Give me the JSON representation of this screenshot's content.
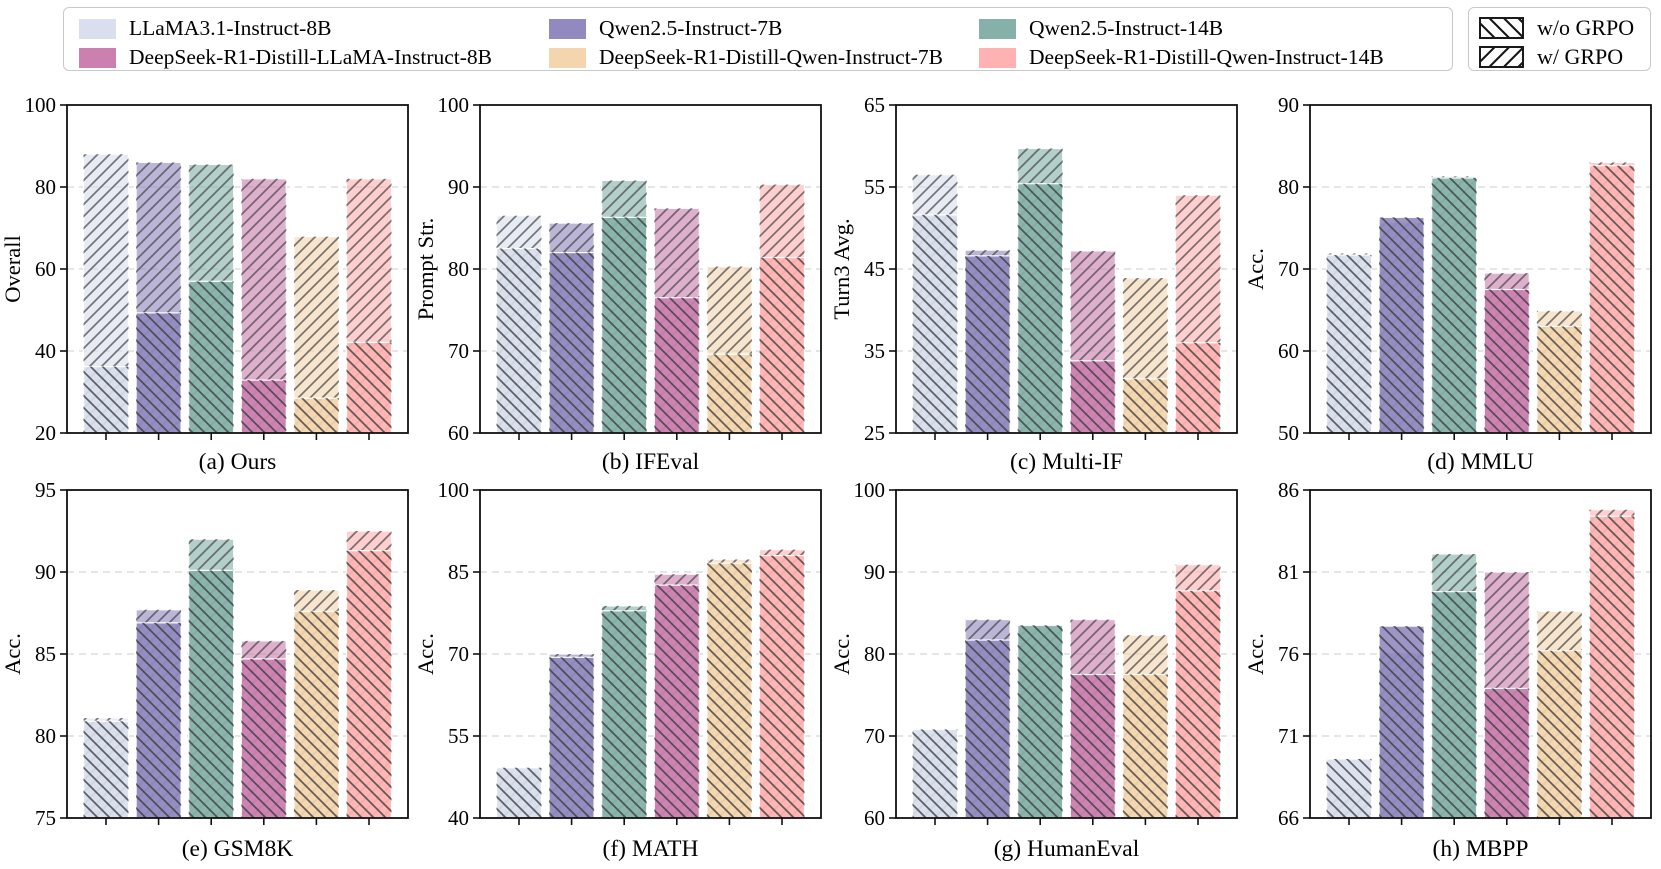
{
  "figure": {
    "legend": {
      "models": [
        {
          "label": "LLaMA3.1-Instruct-8B",
          "color": "#d9dfee"
        },
        {
          "label": "Qwen2.5-Instruct-7B",
          "color": "#9189c0"
        },
        {
          "label": "Qwen2.5-Instruct-14B",
          "color": "#85b1aa"
        },
        {
          "label": "DeepSeek-R1-Distill-LLaMA-Instruct-8B",
          "color": "#cb80b0"
        },
        {
          "label": "DeepSeek-R1-Distill-Qwen-Instruct-7B",
          "color": "#f4d5ae"
        },
        {
          "label": "DeepSeek-R1-Distill-Qwen-Instruct-14B",
          "color": "#ffb2b1"
        }
      ],
      "hatches": [
        {
          "label": "w/o GRPO",
          "pattern": "backslash"
        },
        {
          "label": "w/ GRPO",
          "pattern": "slash"
        }
      ],
      "position": "top"
    }
  },
  "chart_data": [
    {
      "type": "bar",
      "caption": "(a) Ours",
      "ylabel": "Overall",
      "ylim": [
        20,
        100
      ],
      "yticks": [
        20,
        40,
        60,
        80,
        100
      ],
      "grid": "horizontal-dashed",
      "categories": [
        "LLaMA3.1-Instruct-8B",
        "Qwen2.5-Instruct-7B",
        "Qwen2.5-Instruct-14B",
        "DeepSeek-R1-Distill-LLaMA-Instruct-8B",
        "DeepSeek-R1-Distill-Qwen-Instruct-7B",
        "DeepSeek-R1-Distill-Qwen-Instruct-14B"
      ],
      "series": [
        {
          "name": "w/o GRPO",
          "values": [
            36.2,
            49.3,
            57.0,
            32.9,
            28.5,
            42.1
          ]
        },
        {
          "name": "w/ GRPO",
          "values": [
            88.0,
            86.0,
            85.5,
            82.0,
            67.9,
            82.0
          ]
        }
      ]
    },
    {
      "type": "bar",
      "caption": "(b) IFEval",
      "ylabel": "Prompt Str.",
      "ylim": [
        60,
        100
      ],
      "yticks": [
        60,
        70,
        80,
        90,
        100
      ],
      "grid": "horizontal-dashed",
      "categories": [
        "LLaMA3.1-Instruct-8B",
        "Qwen2.5-Instruct-7B",
        "Qwen2.5-Instruct-14B",
        "DeepSeek-R1-Distill-LLaMA-Instruct-8B",
        "DeepSeek-R1-Distill-Qwen-Instruct-7B",
        "DeepSeek-R1-Distill-Qwen-Instruct-14B"
      ],
      "series": [
        {
          "name": "w/o GRPO",
          "values": [
            82.5,
            82.0,
            86.3,
            76.5,
            69.6,
            81.4
          ]
        },
        {
          "name": "w/ GRPO",
          "values": [
            86.5,
            85.6,
            90.8,
            87.4,
            80.3,
            90.3
          ]
        }
      ]
    },
    {
      "type": "bar",
      "caption": "(c) Multi-IF",
      "ylabel": "Turn3 Avg.",
      "ylim": [
        25,
        65
      ],
      "yticks": [
        25,
        35,
        45,
        55,
        65
      ],
      "grid": "horizontal-dashed",
      "categories": [
        "LLaMA3.1-Instruct-8B",
        "Qwen2.5-Instruct-7B",
        "Qwen2.5-Instruct-14B",
        "DeepSeek-R1-Distill-LLaMA-Instruct-8B",
        "DeepSeek-R1-Distill-Qwen-Instruct-7B",
        "DeepSeek-R1-Distill-Qwen-Instruct-14B"
      ],
      "series": [
        {
          "name": "w/o GRPO",
          "values": [
            51.6,
            46.6,
            55.4,
            33.8,
            31.6,
            36.0
          ]
        },
        {
          "name": "w/ GRPO",
          "values": [
            56.5,
            47.3,
            59.7,
            47.2,
            43.9,
            54.0
          ]
        }
      ]
    },
    {
      "type": "bar",
      "caption": "(d) MMLU",
      "ylabel": "Acc.",
      "ylim": [
        50,
        90
      ],
      "yticks": [
        50,
        60,
        70,
        80,
        90
      ],
      "grid": "horizontal-dashed",
      "categories": [
        "LLaMA3.1-Instruct-8B",
        "Qwen2.5-Instruct-7B",
        "Qwen2.5-Instruct-14B",
        "DeepSeek-R1-Distill-LLaMA-Instruct-8B",
        "DeepSeek-R1-Distill-Qwen-Instruct-7B",
        "DeepSeek-R1-Distill-Qwen-Instruct-14B"
      ],
      "series": [
        {
          "name": "w/o GRPO",
          "values": [
            71.7,
            76.3,
            81.1,
            67.5,
            63.0,
            82.6
          ]
        },
        {
          "name": "w/ GRPO",
          "values": [
            71.9,
            75.7,
            81.3,
            69.5,
            64.9,
            83.0
          ]
        }
      ]
    },
    {
      "type": "bar",
      "caption": "(e) GSM8K",
      "ylabel": "Acc.",
      "ylim": [
        75,
        95
      ],
      "yticks": [
        75,
        80,
        85,
        90,
        95
      ],
      "grid": "horizontal-dashed",
      "categories": [
        "LLaMA3.1-Instruct-8B",
        "Qwen2.5-Instruct-7B",
        "Qwen2.5-Instruct-14B",
        "DeepSeek-R1-Distill-LLaMA-Instruct-8B",
        "DeepSeek-R1-Distill-Qwen-Instruct-7B",
        "DeepSeek-R1-Distill-Qwen-Instruct-14B"
      ],
      "series": [
        {
          "name": "w/o GRPO",
          "values": [
            80.9,
            86.9,
            90.1,
            84.7,
            87.6,
            91.3
          ]
        },
        {
          "name": "w/ GRPO",
          "values": [
            81.1,
            87.7,
            92.0,
            85.8,
            88.9,
            92.5
          ]
        }
      ]
    },
    {
      "type": "bar",
      "caption": "(f) MATH",
      "ylabel": "Acc.",
      "ylim": [
        40,
        100
      ],
      "yticks": [
        40,
        55,
        70,
        85,
        100
      ],
      "grid": "horizontal-dashed",
      "categories": [
        "LLaMA3.1-Instruct-8B",
        "Qwen2.5-Instruct-7B",
        "Qwen2.5-Instruct-14B",
        "DeepSeek-R1-Distill-LLaMA-Instruct-8B",
        "DeepSeek-R1-Distill-Qwen-Instruct-7B",
        "DeepSeek-R1-Distill-Qwen-Instruct-14B"
      ],
      "series": [
        {
          "name": "w/o GRPO",
          "values": [
            49.2,
            69.4,
            77.9,
            82.6,
            86.6,
            88.0
          ]
        },
        {
          "name": "w/ GRPO",
          "values": [
            48.4,
            70.0,
            78.8,
            84.6,
            87.3,
            89.1
          ]
        }
      ]
    },
    {
      "type": "bar",
      "caption": "(g) HumanEval",
      "ylabel": "Acc.",
      "ylim": [
        60,
        100
      ],
      "yticks": [
        60,
        70,
        80,
        90,
        100
      ],
      "grid": "horizontal-dashed",
      "categories": [
        "LLaMA3.1-Instruct-8B",
        "Qwen2.5-Instruct-7B",
        "Qwen2.5-Instruct-14B",
        "DeepSeek-R1-Distill-LLaMA-Instruct-8B",
        "DeepSeek-R1-Distill-Qwen-Instruct-7B",
        "DeepSeek-R1-Distill-Qwen-Instruct-14B"
      ],
      "series": [
        {
          "name": "w/o GRPO",
          "values": [
            70.8,
            81.7,
            83.5,
            77.5,
            77.5,
            87.7
          ]
        },
        {
          "name": "w/ GRPO",
          "values": [
            70.4,
            84.2,
            83.2,
            84.2,
            82.3,
            90.9
          ]
        }
      ]
    },
    {
      "type": "bar",
      "caption": "(h) MBPP",
      "ylabel": "Acc.",
      "ylim": [
        66,
        86
      ],
      "yticks": [
        66,
        71,
        76,
        81,
        86
      ],
      "grid": "horizontal-dashed",
      "categories": [
        "LLaMA3.1-Instruct-8B",
        "Qwen2.5-Instruct-7B",
        "Qwen2.5-Instruct-14B",
        "DeepSeek-R1-Distill-LLaMA-Instruct-8B",
        "DeepSeek-R1-Distill-Qwen-Instruct-7B",
        "DeepSeek-R1-Distill-Qwen-Instruct-14B"
      ],
      "series": [
        {
          "name": "w/o GRPO",
          "values": [
            69.6,
            77.7,
            79.8,
            73.9,
            76.2,
            84.4
          ]
        },
        {
          "name": "w/ GRPO",
          "values": [
            67.8,
            76.1,
            82.1,
            81.0,
            78.6,
            84.8
          ]
        }
      ]
    }
  ]
}
